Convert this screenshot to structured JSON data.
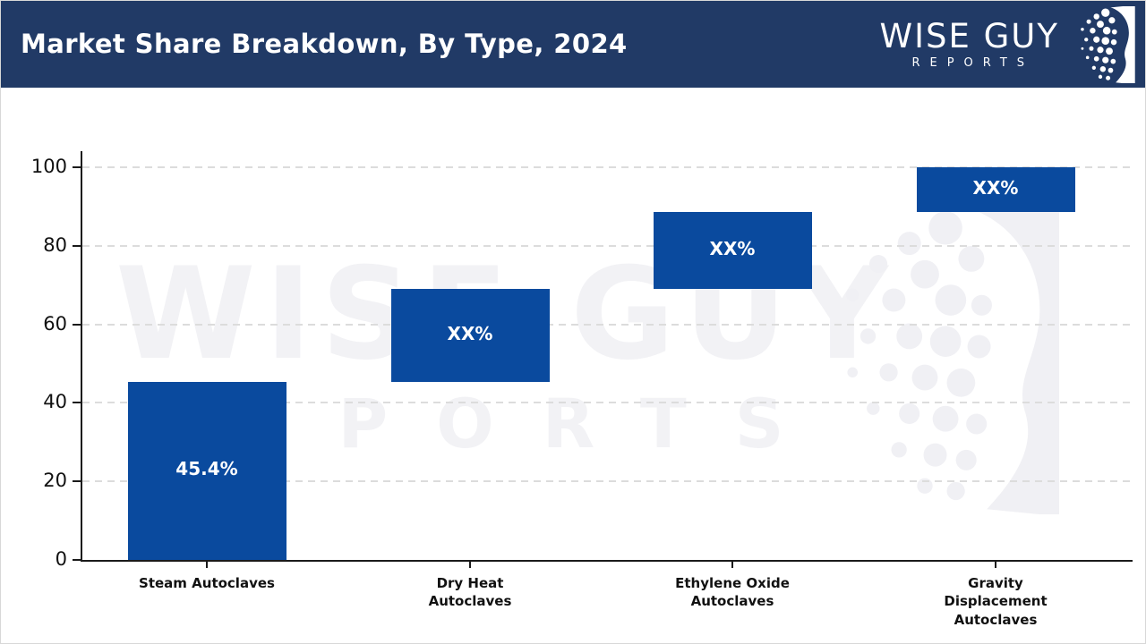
{
  "header": {
    "title": "Market Share Breakdown, By Type, 2024",
    "brand_line1": "WISE GUY",
    "brand_line2": "REPORTS"
  },
  "watermark": {
    "line1": "WISE GUY",
    "line2": "REPORTS"
  },
  "colors": {
    "header_bg": "#213A66",
    "bar": "#0A4A9E",
    "bar_label": "#FFFFFF",
    "grid": "#DCDCDC",
    "axis": "#1A1A1A",
    "watermark": "#F2F2F5"
  },
  "chart_data": {
    "type": "bar",
    "subtype": "waterfall",
    "title": "Market Share Breakdown, By Type, 2024",
    "ylim": [
      0,
      100
    ],
    "yticks": [
      0,
      20,
      40,
      60,
      80,
      100
    ],
    "grid": "horizontal dashed",
    "legend": "none",
    "categories": [
      "Steam Autoclaves",
      "Dry Heat Autoclaves",
      "Ethylene Oxide Autoclaves",
      "Gravity Displacement Autoclaves"
    ],
    "category_label_lines": [
      [
        "Steam Autoclaves"
      ],
      [
        "Dry Heat",
        "Autoclaves"
      ],
      [
        "Ethylene Oxide",
        "Autoclaves"
      ],
      [
        "Gravity",
        "Displacement",
        "Autoclaves"
      ]
    ],
    "segments": [
      {
        "category": "Steam Autoclaves",
        "start": 0,
        "end": 45.4,
        "label": "45.4%"
      },
      {
        "category": "Dry Heat Autoclaves",
        "start": 45.4,
        "end": 69,
        "label": "XX%"
      },
      {
        "category": "Ethylene Oxide Autoclaves",
        "start": 69,
        "end": 88.6,
        "label": "XX%"
      },
      {
        "category": "Gravity Displacement Autoclaves",
        "start": 88.6,
        "end": 100,
        "label": "XX%"
      }
    ]
  }
}
